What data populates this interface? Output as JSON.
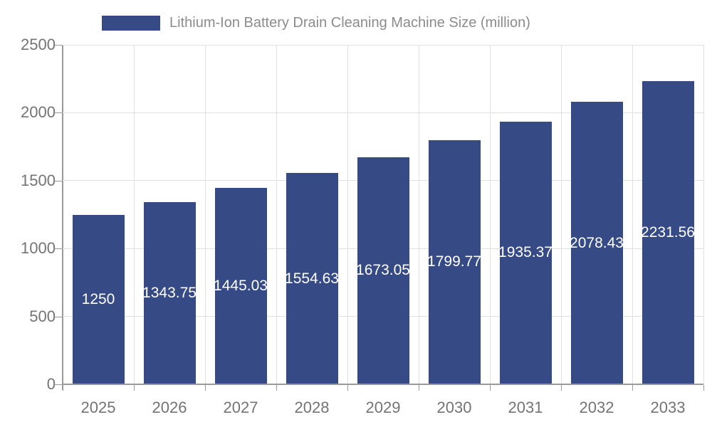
{
  "legend": {
    "label": "Lithium-Ion Battery Drain Cleaning Machine Size (million)"
  },
  "chart_data": {
    "type": "bar",
    "title": "Lithium-Ion Battery Drain Cleaning Machine Size (million)",
    "categories": [
      "2025",
      "2026",
      "2027",
      "2028",
      "2029",
      "2030",
      "2031",
      "2032",
      "2033"
    ],
    "values": [
      1250,
      1343.75,
      1445.03,
      1554.63,
      1673.05,
      1799.77,
      1935.37,
      2078.43,
      2231.56
    ],
    "value_labels": [
      "1250",
      "1343.75",
      "1445.03",
      "1554.63",
      "1673.05",
      "1799.77",
      "1935.37",
      "2078.43",
      "2231.56"
    ],
    "xlabel": "",
    "ylabel": "",
    "ylim": [
      0,
      2500
    ],
    "y_ticks": [
      0,
      500,
      1000,
      1500,
      2000,
      2500
    ],
    "grid": true,
    "legend_position": "top"
  },
  "colors": {
    "bar": "#364a85",
    "legend_text": "#8c8c8c",
    "axis_text": "#747474",
    "gridline": "#e0e0e0",
    "axis_line": "#9a9a9a"
  }
}
